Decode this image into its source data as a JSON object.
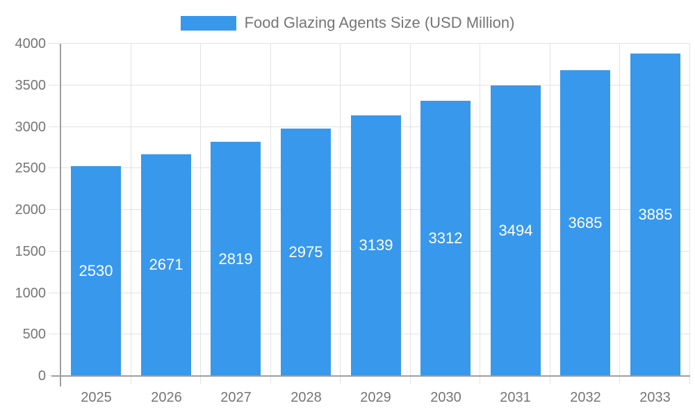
{
  "chart_data": {
    "type": "bar",
    "title": "Food Glazing Agents Size (USD Million)",
    "legend": {
      "position": "top",
      "entries": [
        {
          "label": "Food Glazing Agents Size (USD Million)",
          "swatch_color": "#3898EC"
        }
      ]
    },
    "categories": [
      "2025",
      "2026",
      "2027",
      "2028",
      "2029",
      "2030",
      "2031",
      "2032",
      "2033"
    ],
    "series": [
      {
        "name": "Food Glazing Agents Size (USD Million)",
        "values": [
          2530,
          2671,
          2819,
          2975,
          3139,
          3312,
          3494,
          3685,
          3885
        ]
      }
    ],
    "xlabel": "",
    "ylabel": "",
    "ylim": [
      0,
      4000
    ],
    "y_ticks": [
      0,
      500,
      1000,
      1500,
      2000,
      2500,
      3000,
      3500,
      4000
    ],
    "grid": true,
    "bar_value_labels_inside": true,
    "colors": {
      "bar": "#3898EC",
      "bar_value_label": "#FFFFFF",
      "axis_text": "#757575",
      "grid_line": "#E2E2E2",
      "axis_line": "#9E9E9E",
      "background": "#FFFFFF"
    }
  }
}
